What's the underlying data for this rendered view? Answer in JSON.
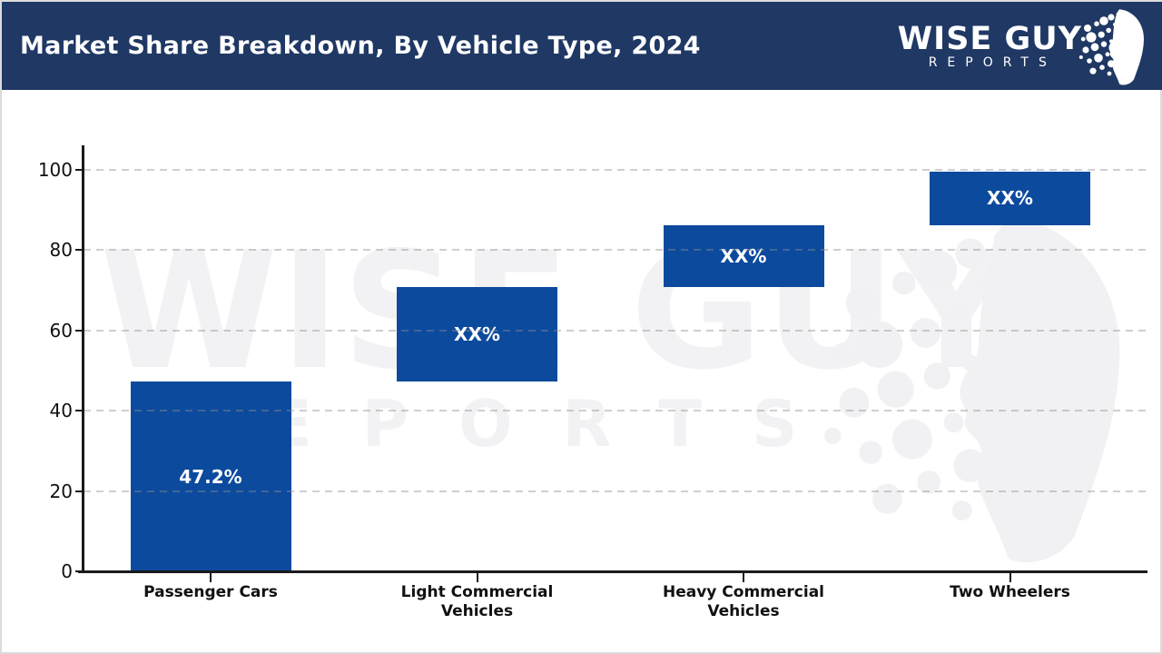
{
  "header": {
    "title": "Market Share Breakdown, By Vehicle Type, 2024",
    "logo_line1": "WISE GUY",
    "logo_line2": "REPORTS"
  },
  "watermark": {
    "line1": "WISE GUY",
    "line2": "REPORTS"
  },
  "chart_data": {
    "type": "bar",
    "variant": "waterfall",
    "title": "Market Share Breakdown, By Vehicle Type, 2024",
    "categories": [
      "Passenger Cars",
      "Light Commercial Vehicles",
      "Heavy Commercial Vehicles",
      "Two Wheelers"
    ],
    "segments": [
      {
        "category": "Passenger Cars",
        "start": 0,
        "end": 47.2,
        "label": "47.2%"
      },
      {
        "category": "Light Commercial Vehicles",
        "start": 47.2,
        "end": 70.8,
        "label": "XX%"
      },
      {
        "category": "Heavy Commercial Vehicles",
        "start": 70.8,
        "end": 86.2,
        "label": "XX%"
      },
      {
        "category": "Two Wheelers",
        "start": 86.3,
        "end": 99.6,
        "label": "XX%"
      }
    ],
    "ylim": [
      0,
      100
    ],
    "yticks": [
      0,
      20,
      40,
      60,
      80,
      100
    ],
    "grid": "horizontal-dashed",
    "legend": "none",
    "colors": {
      "bar": "#0c4a9e",
      "bar_label": "#ffffff",
      "axis": "#1a1a1a",
      "header_bg": "#1f3864",
      "watermark": "#f1f1f3"
    }
  }
}
